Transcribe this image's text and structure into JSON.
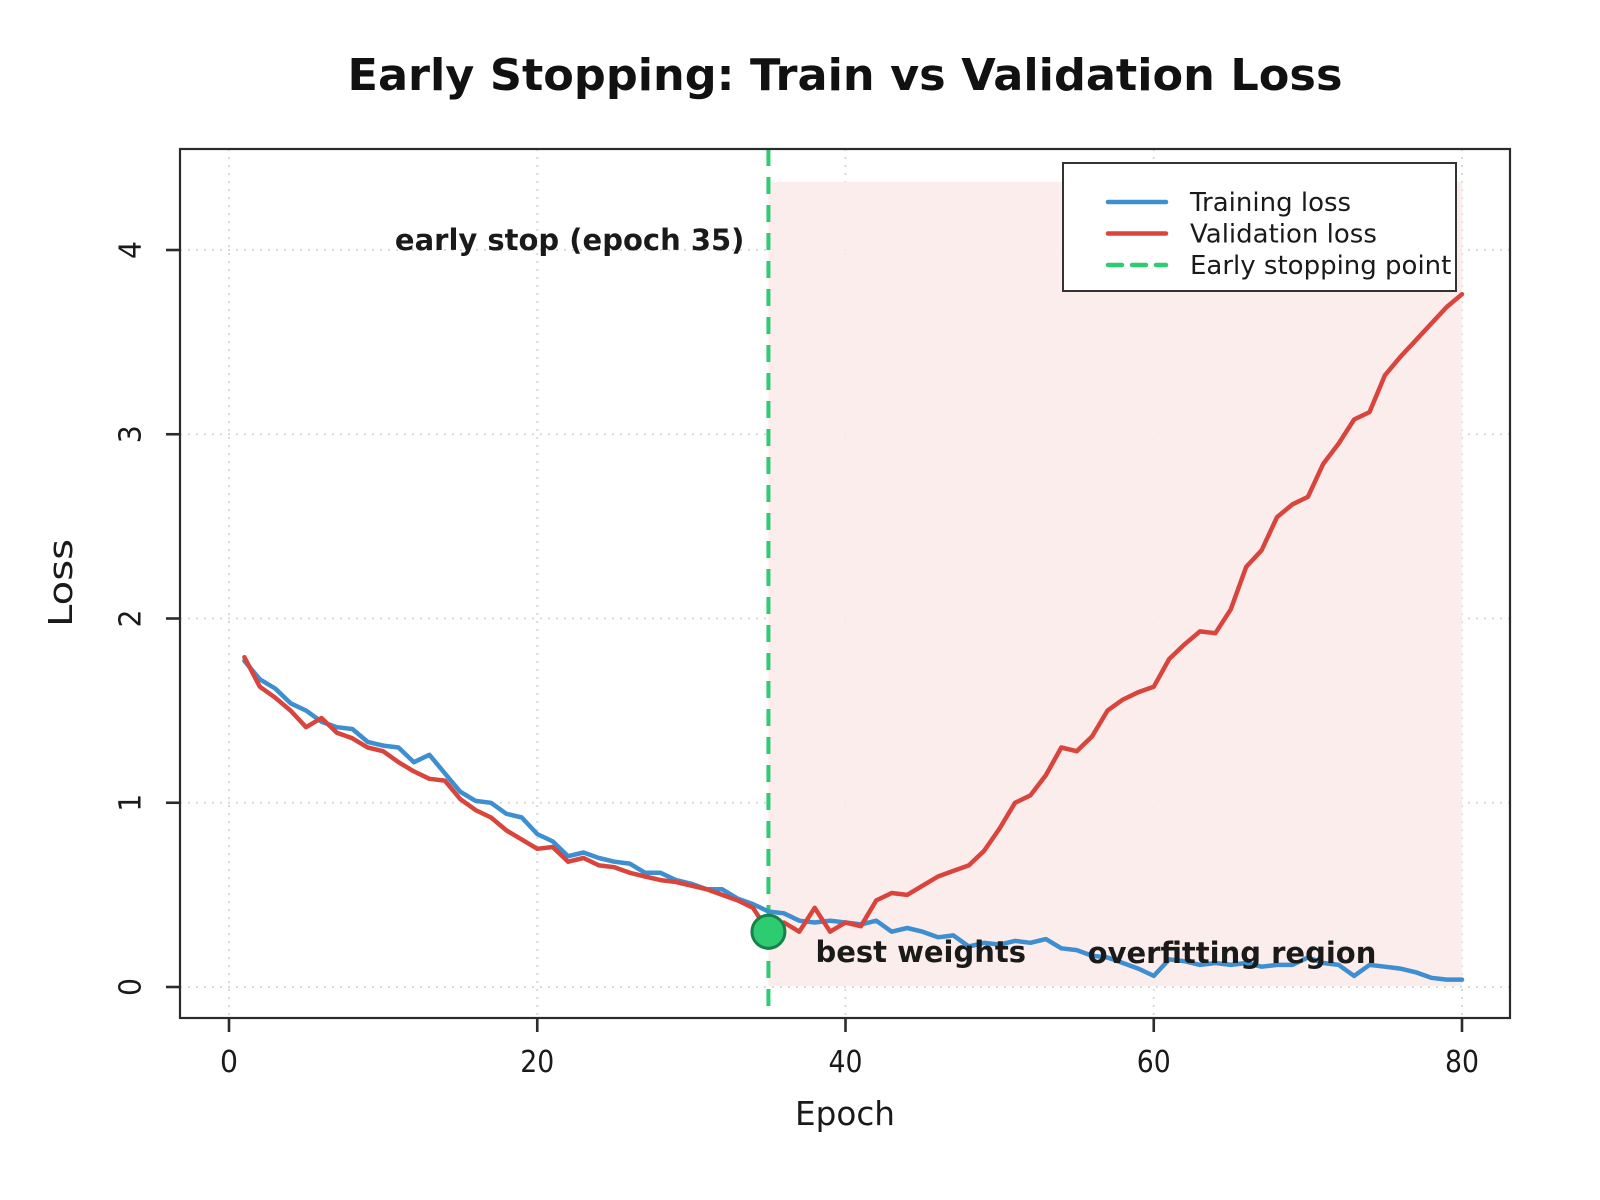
{
  "chart_data": {
    "type": "line",
    "title": "Early Stopping: Train vs Validation Loss",
    "xlabel": "Epoch",
    "ylabel": "Loss",
    "xticks": [
      0,
      20,
      40,
      60,
      80
    ],
    "yticks": [
      0,
      1,
      2,
      3,
      4
    ],
    "xlim": [
      -3.2,
      83.1
    ],
    "ylim": [
      -0.17,
      4.55
    ],
    "grid": "dotted",
    "x": [
      1,
      2,
      3,
      4,
      5,
      6,
      7,
      8,
      9,
      10,
      11,
      12,
      13,
      14,
      15,
      16,
      17,
      18,
      19,
      20,
      21,
      22,
      23,
      24,
      25,
      26,
      27,
      28,
      29,
      30,
      31,
      32,
      33,
      34,
      35,
      36,
      37,
      38,
      39,
      40,
      41,
      42,
      43,
      44,
      45,
      46,
      47,
      48,
      49,
      50,
      51,
      52,
      53,
      54,
      55,
      56,
      57,
      58,
      59,
      60,
      61,
      62,
      63,
      64,
      65,
      66,
      67,
      68,
      69,
      70,
      71,
      72,
      73,
      74,
      75,
      76,
      77,
      78,
      79,
      80
    ],
    "series": [
      {
        "name": "Training loss",
        "color": "#3d8fd1",
        "values": [
          1.77,
          1.67,
          1.62,
          1.54,
          1.5,
          1.44,
          1.41,
          1.4,
          1.33,
          1.31,
          1.3,
          1.22,
          1.26,
          1.16,
          1.06,
          1.01,
          1.0,
          0.94,
          0.92,
          0.83,
          0.79,
          0.71,
          0.73,
          0.7,
          0.68,
          0.67,
          0.62,
          0.62,
          0.58,
          0.56,
          0.53,
          0.53,
          0.48,
          0.45,
          0.41,
          0.4,
          0.36,
          0.35,
          0.36,
          0.35,
          0.34,
          0.36,
          0.3,
          0.32,
          0.3,
          0.27,
          0.28,
          0.22,
          0.24,
          0.23,
          0.25,
          0.24,
          0.26,
          0.21,
          0.2,
          0.17,
          0.16,
          0.13,
          0.1,
          0.06,
          0.15,
          0.14,
          0.12,
          0.13,
          0.12,
          0.13,
          0.11,
          0.12,
          0.12,
          0.16,
          0.13,
          0.12,
          0.06,
          0.12,
          0.11,
          0.1,
          0.08,
          0.05,
          0.04,
          0.04
        ]
      },
      {
        "name": "Validation loss",
        "color": "#d9453d",
        "values": [
          1.79,
          1.63,
          1.57,
          1.5,
          1.41,
          1.46,
          1.38,
          1.35,
          1.3,
          1.28,
          1.22,
          1.17,
          1.13,
          1.12,
          1.02,
          0.96,
          0.92,
          0.85,
          0.8,
          0.75,
          0.76,
          0.68,
          0.7,
          0.66,
          0.65,
          0.62,
          0.6,
          0.58,
          0.57,
          0.55,
          0.53,
          0.5,
          0.47,
          0.43,
          0.3,
          0.35,
          0.3,
          0.43,
          0.3,
          0.35,
          0.33,
          0.47,
          0.51,
          0.5,
          0.55,
          0.6,
          0.63,
          0.66,
          0.74,
          0.86,
          1.0,
          1.04,
          1.15,
          1.3,
          1.28,
          1.36,
          1.5,
          1.56,
          1.6,
          1.63,
          1.78,
          1.86,
          1.93,
          1.92,
          2.05,
          2.28,
          2.37,
          2.55,
          2.62,
          2.66,
          2.84,
          2.95,
          3.08,
          3.12,
          3.32,
          3.42,
          3.51,
          3.6,
          3.69,
          3.76
        ]
      }
    ],
    "early_stopping": {
      "epoch": 35,
      "line_color": "#2ecc71",
      "annotation_top": "early stop (epoch 35)",
      "annotation_top_color": "#2e8b57",
      "best_weights_label": "best weights",
      "best_weights_color": "#2e8b57",
      "best_weights_point": {
        "epoch": 35,
        "loss": 0.3
      },
      "marker_fill": "#2ecc71",
      "marker_edge": "#17814a"
    },
    "overfitting_region": {
      "label": "overfitting region",
      "label_color": "#8b0000",
      "x0": 35,
      "x1": 80,
      "y0": 0.005,
      "y1": 4.37,
      "fill": "#faebe8"
    },
    "legend": {
      "position": "top-right",
      "entries": [
        {
          "label": "Training loss",
          "color": "#3d8fd1",
          "style": "solid"
        },
        {
          "label": "Validation loss",
          "color": "#d9453d",
          "style": "solid"
        },
        {
          "label": "Early stopping point",
          "color": "#2ecc71",
          "style": "dashed"
        }
      ]
    },
    "grid_color": "#d9d9d9",
    "axis_color": "#2b2b2b"
  }
}
